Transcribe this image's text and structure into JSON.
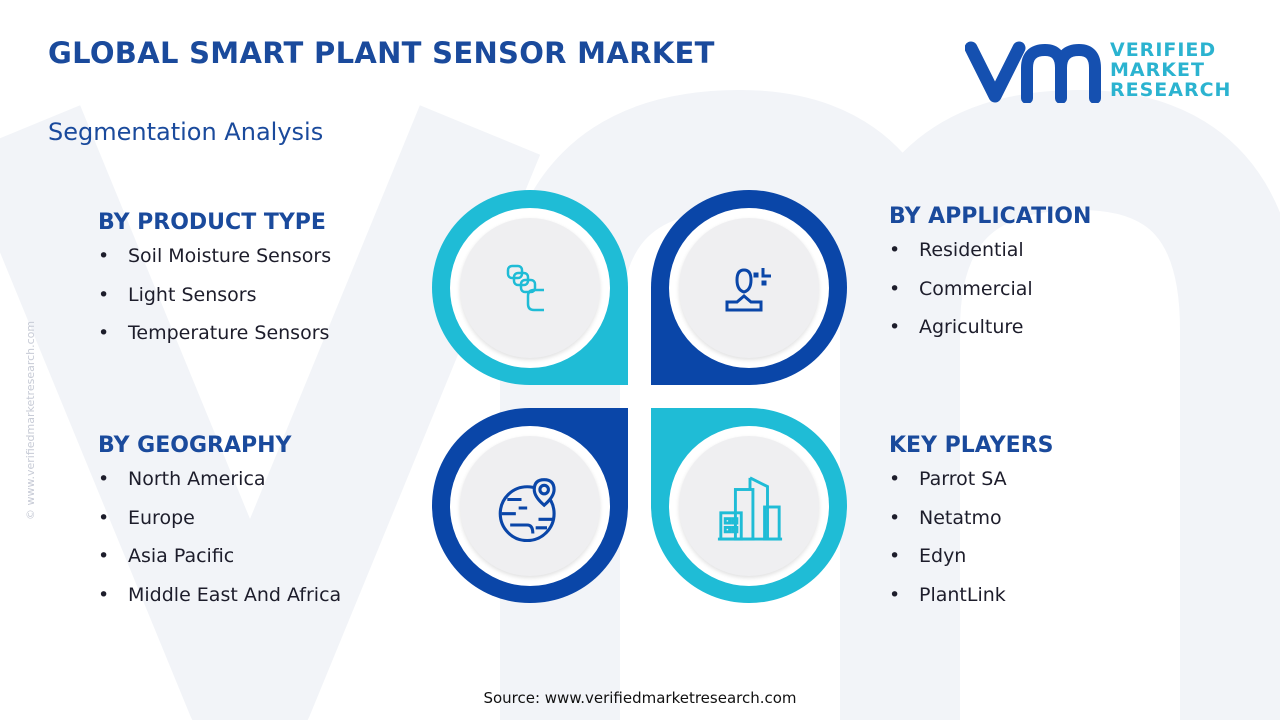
{
  "header": {
    "title": "GLOBAL SMART PLANT SENSOR MARKET",
    "subtitle": "Segmentation Analysis"
  },
  "logo": {
    "line1": "VERIFIED",
    "line2": "MARKET",
    "line3": "RESEARCH",
    "mark": "vmr"
  },
  "side_text": "© www.verifiedmarketresearch.com",
  "colors": {
    "cyan": "#1fbcd6",
    "dark_blue": "#0a46a8",
    "title": "#1a4a9c"
  },
  "segments": [
    {
      "title": "BY PRODUCT TYPE",
      "icon": "sensor-stack-icon",
      "items": [
        "Soil Moisture Sensors",
        "Light Sensors",
        "Temperature Sensors"
      ]
    },
    {
      "title": "BY APPLICATION",
      "icon": "user-icon",
      "items": [
        "Residential",
        "Commercial",
        "Agriculture"
      ]
    },
    {
      "title": "BY GEOGRAPHY",
      "icon": "globe-location-icon",
      "items": [
        "North America",
        "Europe",
        "Asia Pacific",
        "Middle East And Africa"
      ]
    },
    {
      "title": "KEY PLAYERS",
      "icon": "buildings-icon",
      "items": [
        "Parrot SA",
        "Netatmo",
        "Edyn",
        "PlantLink"
      ]
    }
  ],
  "source": "Source: www.verifiedmarketresearch.com"
}
